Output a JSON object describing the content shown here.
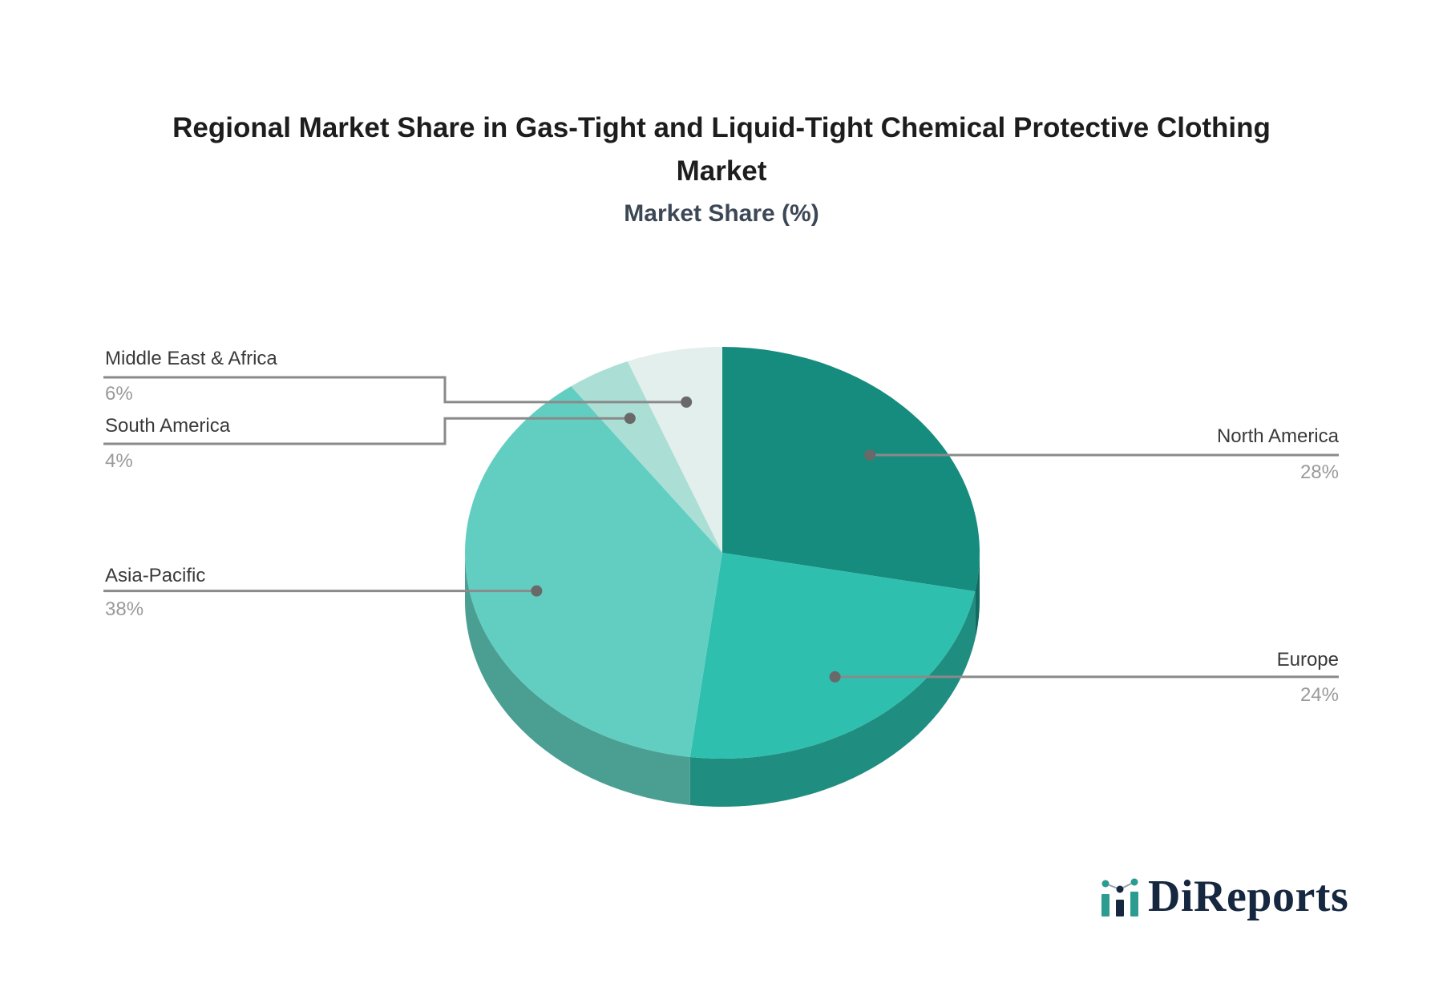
{
  "page": {
    "background": "#ffffff"
  },
  "chart_data": {
    "type": "pie",
    "style": "3d-pie",
    "title": "Regional Market Share in Gas-Tight and Liquid-Tight Chemical Protective Clothing Market",
    "title_lines": [
      "Regional Market Share in Gas-Tight and Liquid-Tight Chemical Protective Clothing",
      "Market"
    ],
    "subtitle": "Market Share (%)",
    "unit": "%",
    "direction": "clockwise",
    "start_angle_deg": 0,
    "legend_position": "none",
    "labels_style": "leader-lines",
    "slices": [
      {
        "label": "North America",
        "value": 28,
        "display": "28%",
        "color": "#168c7e",
        "side_color": "#126b60"
      },
      {
        "label": "Europe",
        "value": 24,
        "display": "24%",
        "color": "#2fbfae",
        "side_color": "#1f8e80"
      },
      {
        "label": "Asia-Pacific",
        "value": 38,
        "display": "38%",
        "color": "#62cec2",
        "side_color": "#4b9f92"
      },
      {
        "label": "South America",
        "value": 4,
        "display": "4%",
        "color": "#abdfd5",
        "side_color": "#8fbfb4"
      },
      {
        "label": "Middle East & Africa",
        "value": 6,
        "display": "6%",
        "color": "#e2efec",
        "side_color": "#c4d6d1"
      }
    ]
  },
  "colors": {
    "leader_line": "#8a8a8a",
    "dot": "#696969",
    "label_text": "#3a3a3a",
    "value_text": "#9a9a9a",
    "title_text": "#1d1d1d",
    "subtitle_text": "#3d4857",
    "logo_navy": "#152840",
    "logo_teal": "#2b9c8f"
  },
  "logo": {
    "text": "DiReports"
  }
}
